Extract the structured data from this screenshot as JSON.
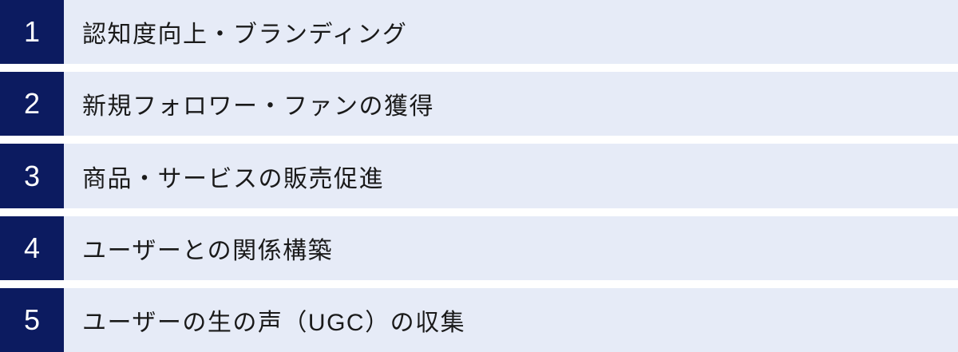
{
  "page": {
    "background_color": "#ffffff"
  },
  "colors": {
    "number_box_bg": "#0c1b60",
    "number_text": "#ffffff",
    "row_bg": "#e6ebf7",
    "item_text": "#1a1a1a"
  },
  "list": {
    "items": [
      {
        "number": "1",
        "label": "認知度向上・ブランディング"
      },
      {
        "number": "2",
        "label": "新規フォロワー・ファンの獲得"
      },
      {
        "number": "3",
        "label": "商品・サービスの販売促進"
      },
      {
        "number": "4",
        "label": "ユーザーとの関係構築"
      },
      {
        "number": "5",
        "label": "ユーザーの生の声（UGC）の収集"
      }
    ]
  }
}
